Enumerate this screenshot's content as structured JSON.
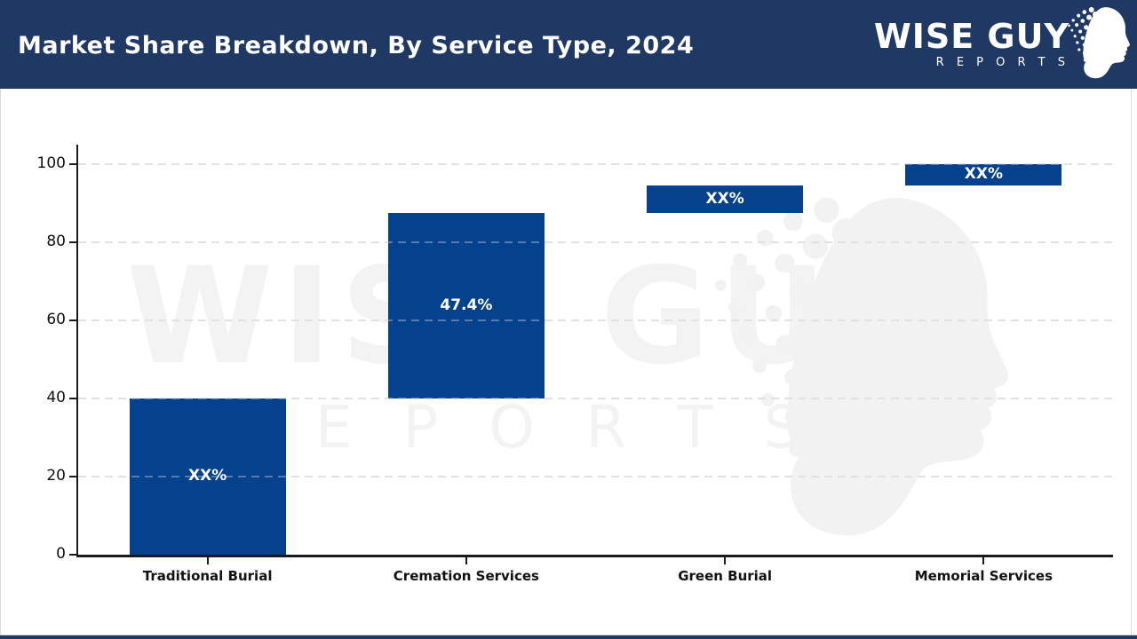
{
  "header": {
    "title": "Market Share Breakdown, By Service Type, 2024",
    "logo": {
      "wordmark": "WISE GUY",
      "subtext": "R E P O R T S"
    }
  },
  "watermark": {
    "wordmark": "WISE GUY",
    "subtext": "R E P O R T S"
  },
  "colors": {
    "header_bg": "#203864",
    "bar": "#05418d",
    "axis": "#1a1a1a",
    "grid": "#dcdcdc",
    "watermark": "#f3f3f3",
    "bar_label_text": "#ffffff"
  },
  "chart_data": {
    "type": "bar",
    "subtype": "waterfall",
    "title": "Market Share Breakdown, By Service Type, 2024",
    "categories": [
      "Traditional Burial",
      "Cremation Services",
      "Green Burial",
      "Memorial Services"
    ],
    "segments": [
      {
        "category": "Traditional Burial",
        "start": 0,
        "end": 40,
        "label": "XX%"
      },
      {
        "category": "Cremation Services",
        "start": 40,
        "end": 87.4,
        "label": "47.4%"
      },
      {
        "category": "Green Burial",
        "start": 87.4,
        "end": 94.6,
        "label": "XX%"
      },
      {
        "category": "Memorial Services",
        "start": 94.6,
        "end": 100,
        "label": "XX%"
      }
    ],
    "yticks": [
      0,
      20,
      40,
      60,
      80,
      100
    ],
    "ylim": [
      0,
      105
    ],
    "xlabel": "",
    "ylabel": "",
    "grid": "horizontal-dashed",
    "legend": null
  }
}
